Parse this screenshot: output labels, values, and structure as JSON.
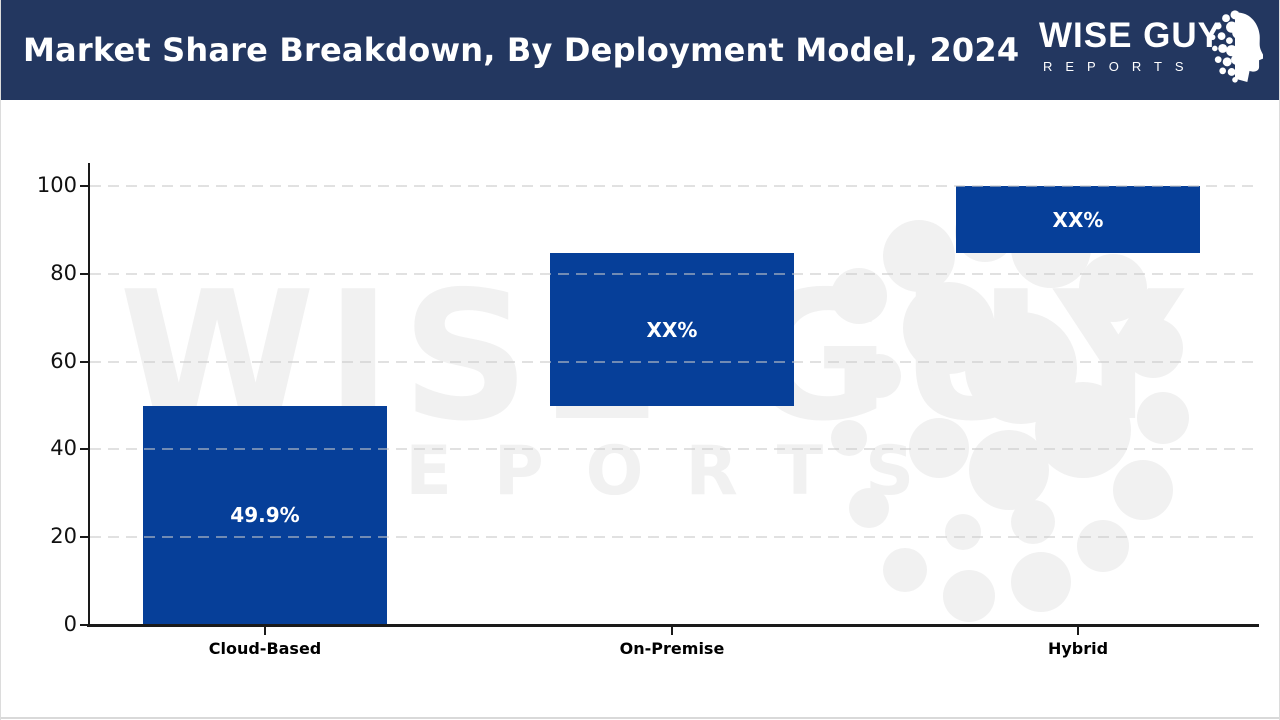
{
  "header": {
    "title": "Market Share Breakdown, By Deployment Model, 2024",
    "logo": {
      "line1": "WISE GUY",
      "line2": "REPORTS"
    }
  },
  "watermark": {
    "line1": "WISE GUY",
    "line2": "REPORTS"
  },
  "chart_data": {
    "type": "bar",
    "subtype": "waterfall-segments-stacking-to-100",
    "title": "Market Share Breakdown, By Deployment Model, 2024",
    "categories": [
      "Cloud-Based",
      "On-Premise",
      "Hybrid"
    ],
    "segments": [
      {
        "category": "Cloud-Based",
        "start": 0,
        "end": 49.9,
        "label": "49.9%"
      },
      {
        "category": "On-Premise",
        "start": 49.9,
        "end": 84.7,
        "label": "XX%"
      },
      {
        "category": "Hybrid",
        "start": 84.7,
        "end": 100,
        "label": "XX%"
      }
    ],
    "ylim": [
      0,
      100
    ],
    "yticks": [
      0,
      20,
      40,
      60,
      80,
      100
    ],
    "xlabel": "",
    "ylabel": "",
    "grid": "dashed-horizontal-on-top",
    "legend": "none",
    "bar_color": "#063F99",
    "value_label_color": "#ffffff",
    "header_color": "#233760"
  }
}
